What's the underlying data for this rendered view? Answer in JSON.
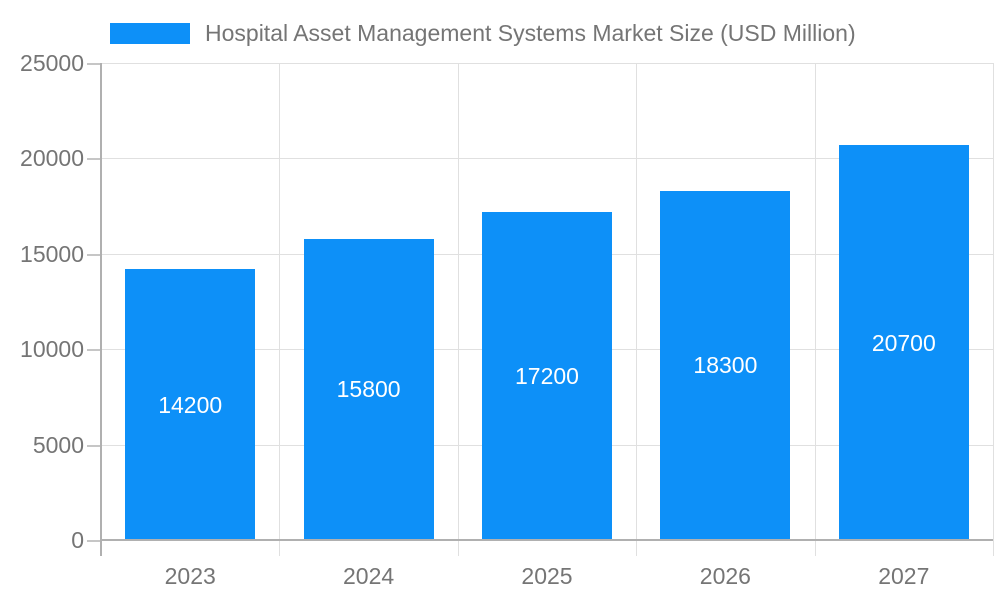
{
  "colors": {
    "bar": "#0D90F8",
    "axis_text": "#757575",
    "axis_line": "#b0b0b0",
    "grid": "#e0e0e0",
    "tick": "#c6c6c6",
    "value_label": "#ffffff",
    "background": "#ffffff"
  },
  "chart_data": {
    "type": "bar",
    "title": "Hospital Asset Management Systems Market Size (USD Million)",
    "legend_entries": [
      "Hospital Asset Management Systems Market Size (USD Million)"
    ],
    "legend_position": "top-left",
    "categories": [
      "2023",
      "2024",
      "2025",
      "2026",
      "2027"
    ],
    "values": [
      14200,
      15800,
      17200,
      18300,
      20700
    ],
    "data_labels": [
      "14200",
      "15800",
      "17200",
      "18300",
      "20700"
    ],
    "xlabel": "",
    "ylabel": "",
    "ylim": [
      0,
      25000
    ],
    "yticks": [
      0,
      5000,
      10000,
      15000,
      20000,
      25000
    ],
    "grid": true
  }
}
